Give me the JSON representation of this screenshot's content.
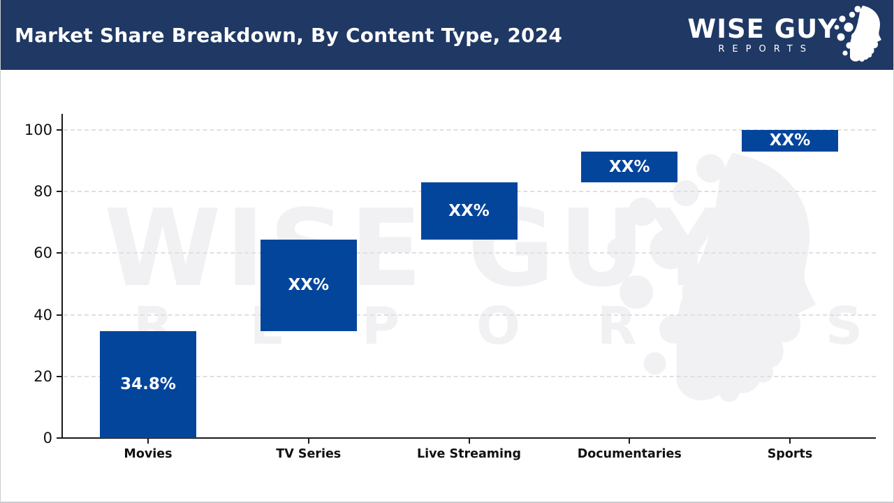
{
  "header": {
    "title": "Market Share Breakdown, By Content Type, 2024",
    "logo": {
      "name": "WISE GUY",
      "tagline": "REPORTS"
    }
  },
  "watermark": {
    "name": "WISE GUY",
    "tagline": "REPORTS"
  },
  "colors": {
    "header_bg": "#1F3864",
    "bar": "#04459C",
    "bar_label": "#FFFFFF",
    "gridline": "#DFDFDF",
    "axis": "#1A1A1A",
    "watermark": "#F1F1F4"
  },
  "chart_data": {
    "type": "bar",
    "subtype": "waterfall",
    "title": "Market Share Breakdown, By Content Type, 2024",
    "categories": [
      "Movies",
      "TV Series",
      "Live Streaming",
      "Documentaries",
      "Sports"
    ],
    "segments": [
      {
        "category": "Movies",
        "start": 0,
        "end": 34.8,
        "value": 34.8,
        "label": "34.8%"
      },
      {
        "category": "TV Series",
        "start": 34.8,
        "end": 64.4,
        "value": 29.6,
        "label": "XX%"
      },
      {
        "category": "Live Streaming",
        "start": 64.4,
        "end": 83.0,
        "value": 18.6,
        "label": "XX%"
      },
      {
        "category": "Documentaries",
        "start": 83.0,
        "end": 93.0,
        "value": 10.0,
        "label": "XX%"
      },
      {
        "category": "Sports",
        "start": 93.0,
        "end": 100.0,
        "value": 7.0,
        "label": "XX%"
      }
    ],
    "xlabel": "",
    "ylabel": "",
    "ylim": [
      0,
      100
    ],
    "yticks": [
      0,
      20,
      40,
      60,
      80,
      100
    ],
    "grid": {
      "horizontal": true,
      "style": "dashed"
    },
    "legend": "none",
    "bar_color": "#04459C"
  }
}
